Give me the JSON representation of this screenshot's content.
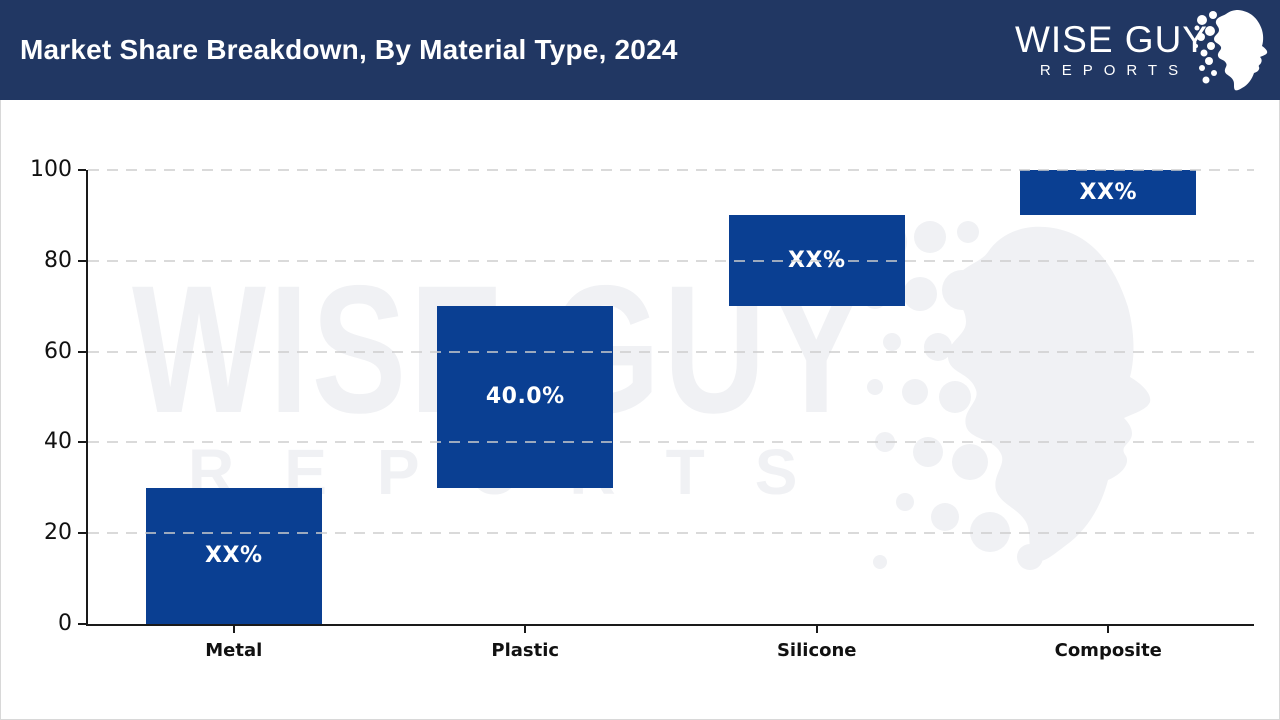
{
  "header": {
    "title": "Market Share Breakdown, By Material Type, 2024",
    "logo": {
      "line1": "WISE GUY",
      "line2": "REPORTS"
    }
  },
  "watermark": {
    "line1": "WISE GUY",
    "line2": "REPORTS"
  },
  "colors": {
    "header_bg": "#213763",
    "bar": "#0a3f92",
    "bar_label": "#ffffff",
    "axis": "#1a1a1a",
    "grid": "#dddddd",
    "watermark": "#f0f1f4",
    "page_border": "#d8d8d8"
  },
  "chart_data": {
    "type": "bar",
    "subtype": "waterfall",
    "title": "Market Share Breakdown, By Material Type, 2024",
    "categories": [
      "Metal",
      "Plastic",
      "Silicone",
      "Composite"
    ],
    "bars": [
      {
        "category": "Metal",
        "start": 0,
        "end": 30,
        "label": "XX%"
      },
      {
        "category": "Plastic",
        "start": 30,
        "end": 70,
        "label": "40.0%"
      },
      {
        "category": "Silicone",
        "start": 70,
        "end": 90,
        "label": "XX%"
      },
      {
        "category": "Composite",
        "start": 90,
        "end": 100,
        "label": "XX%"
      }
    ],
    "xlabel": "",
    "ylabel": "",
    "ylim": [
      0,
      100
    ],
    "yticks": [
      0,
      20,
      40,
      60,
      80,
      100
    ],
    "grid": "horizontal-dashed",
    "legend": "none"
  }
}
